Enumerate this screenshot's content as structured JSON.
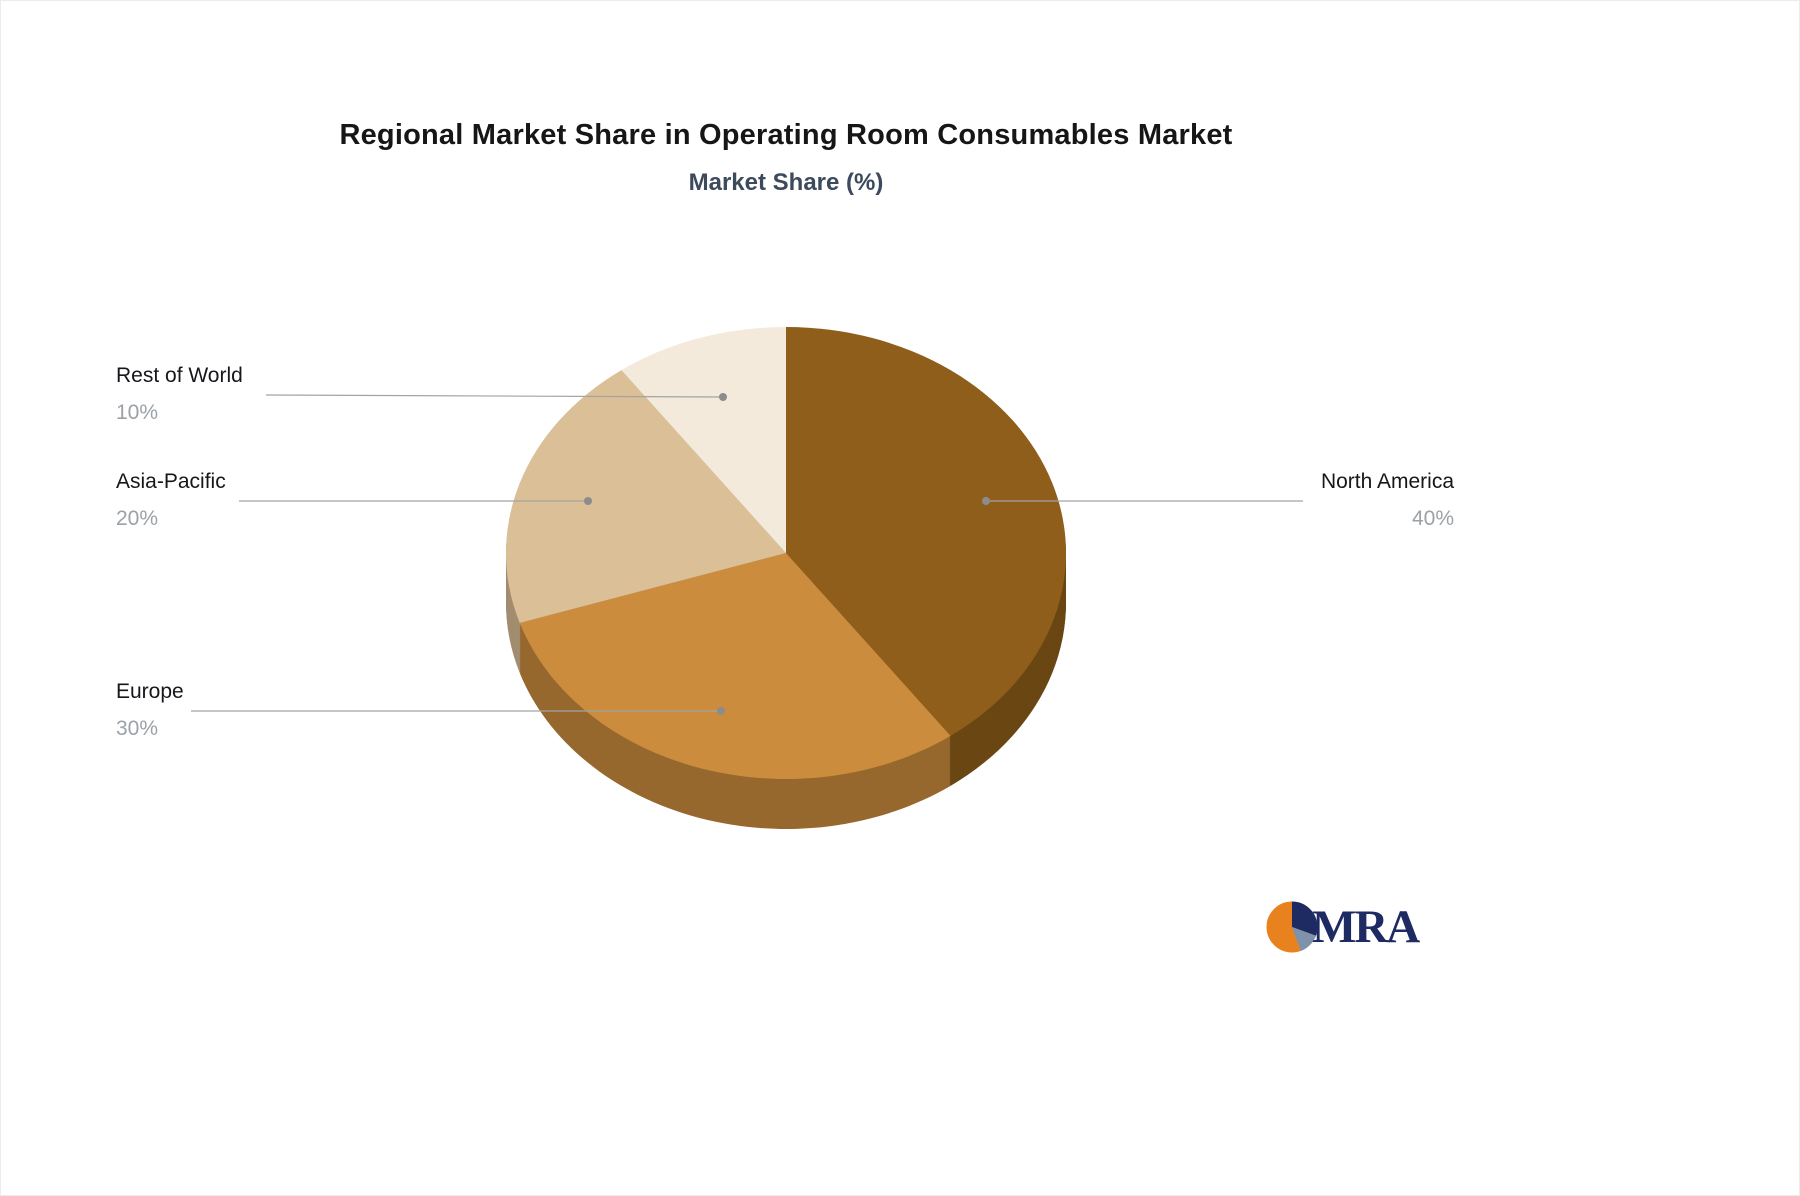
{
  "title": "Regional Market Share in Operating Room Consumables Market",
  "subtitle": "Market Share (%)",
  "chart_data": {
    "type": "pie",
    "title": "Regional Market Share in Operating Room Consumables Market",
    "subtitle": "Market Share (%)",
    "unit": "%",
    "effect": "3d",
    "start_angle_deg": 0,
    "direction": "clockwise",
    "legend_position": "none",
    "label_style": "callout-lines",
    "slices": [
      {
        "label": "North America",
        "value": 40,
        "display_value": "40%",
        "color": "#8F5E1A"
      },
      {
        "label": "Europe",
        "value": 30,
        "display_value": "30%",
        "color": "#CC8C3E"
      },
      {
        "label": "Asia-Pacific",
        "value": 20,
        "display_value": "20%",
        "color": "#DBBF97"
      },
      {
        "label": "Rest of World",
        "value": 10,
        "display_value": "10%",
        "color": "#F3EADC"
      }
    ]
  },
  "callout_colors": {
    "line": "#a3a3a3",
    "dot": "#8c8c8c",
    "label_text": "#15171a",
    "value_text": "#9aa1a8"
  },
  "logo": {
    "text": "MRA",
    "text_color": "#1e2b63",
    "icon": "pie-logo-icon",
    "icon_colors": {
      "orange": "#E8821E",
      "dark_blue": "#1E2B63",
      "steel_blue": "#7E93AB"
    }
  }
}
